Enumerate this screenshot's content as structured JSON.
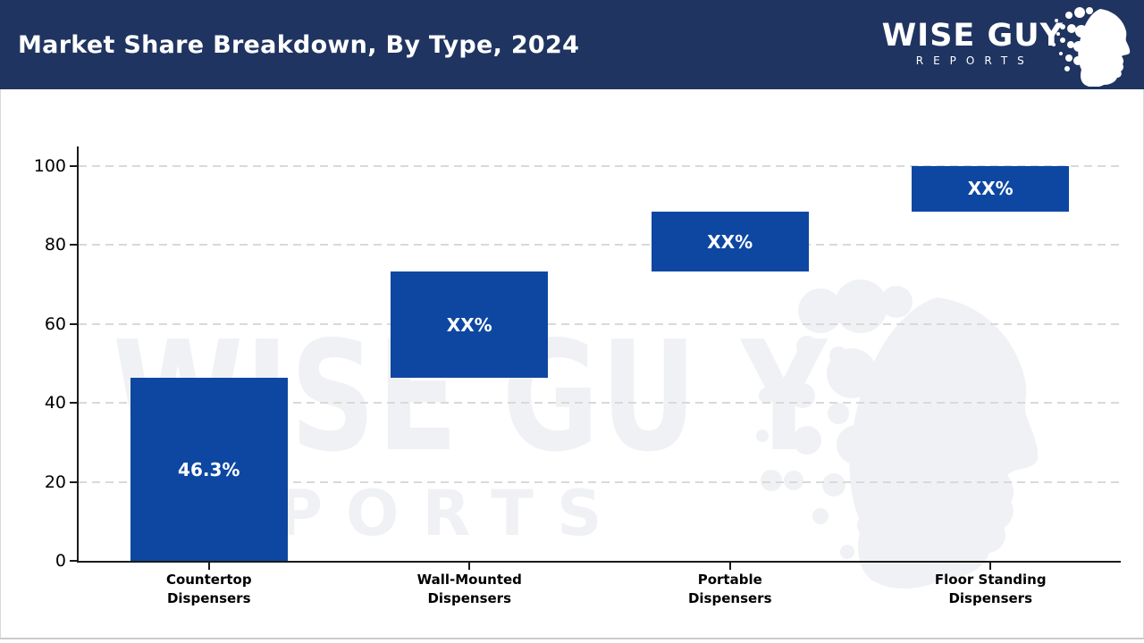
{
  "header": {
    "title": "Market Share Breakdown, By Type, 2024",
    "logo": {
      "wordmark": "WISE GUY",
      "subtext": "REPORTS"
    }
  },
  "watermark": {
    "line1": "WISE GU Y",
    "line2": "REPORTS"
  },
  "colors": {
    "header_bg": "#1f3461",
    "bar_fill": "#0d47a1",
    "bar_label": "#ffffff",
    "grid_line": "#d9d9d9",
    "axis_line": "#1a1a1a",
    "watermark_fill": "#f0f1f4"
  },
  "chart_data": {
    "type": "bar",
    "subtype": "floating-segment-waterfall",
    "title": "Market Share Breakdown, By Type, 2024",
    "categories": [
      "Countertop\nDispensers",
      "Wall-Mounted\nDispensers",
      "Portable\nDispensers",
      "Floor Standing\nDispensers"
    ],
    "segments": [
      {
        "category": "Countertop Dispensers",
        "start": 0,
        "end": 46.3,
        "label": "46.3%"
      },
      {
        "category": "Wall-Mounted Dispensers",
        "start": 46.3,
        "end": 73.2,
        "label": "XX%"
      },
      {
        "category": "Portable Dispensers",
        "start": 73.2,
        "end": 88.5,
        "label": "XX%"
      },
      {
        "category": "Floor Standing Dispensers",
        "start": 88.5,
        "end": 100,
        "label": "XX%"
      }
    ],
    "yticks": [
      0,
      20,
      40,
      60,
      80,
      100
    ],
    "ylim": [
      0,
      105
    ],
    "xlabel": "",
    "ylabel": "",
    "grid": "horizontal-dashed",
    "legend": "none"
  }
}
